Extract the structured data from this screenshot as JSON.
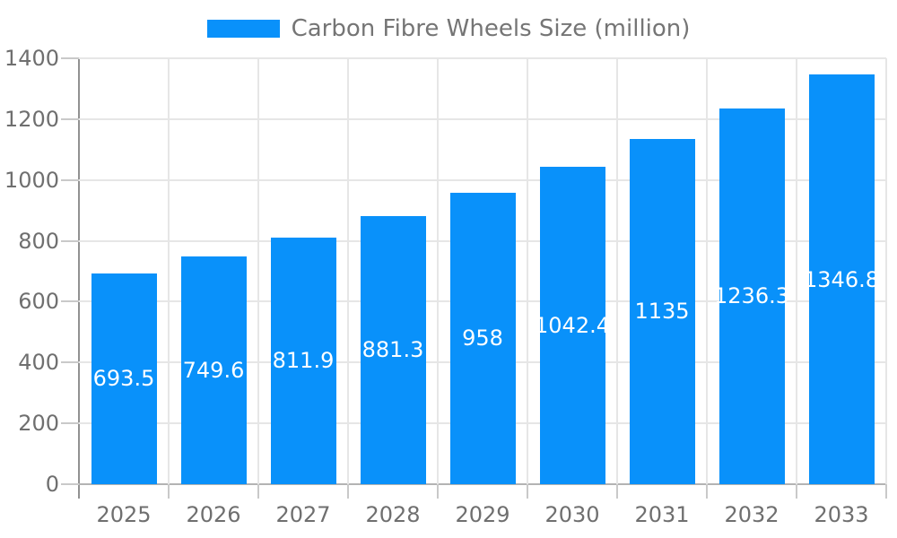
{
  "chart_data": {
    "type": "bar",
    "title": "Carbon Fibre Wheels Size (million)",
    "categories": [
      "2025",
      "2026",
      "2027",
      "2028",
      "2029",
      "2030",
      "2031",
      "2032",
      "2033"
    ],
    "values": [
      693.5,
      749.6,
      811.9,
      881.3,
      958,
      1042.4,
      1135,
      1236.3,
      1346.8
    ],
    "value_labels": [
      "693.5",
      "749.6",
      "811.9",
      "881.3",
      "958",
      "1042.4",
      "1135",
      "1236.3",
      "1346.8"
    ],
    "xlabel": "",
    "ylabel": "",
    "ylim": [
      0,
      1400
    ],
    "ytick_interval": 200,
    "ytick_labels": [
      "0",
      "200",
      "400",
      "600",
      "800",
      "1000",
      "1200",
      "1400"
    ],
    "grid": true,
    "legend_position": "top",
    "bar_label_position": "center",
    "colors": {
      "bar": "#0991fa",
      "bar_label": "#ffffff",
      "axis_text": "#6f6f6f",
      "legend_text": "#757575",
      "gridline": "#e6e6e6",
      "x_axis_line": "#b3b3b3",
      "y_axis_line": "#919191",
      "tick": "#c9c9c9",
      "background": "#ffffff"
    }
  }
}
